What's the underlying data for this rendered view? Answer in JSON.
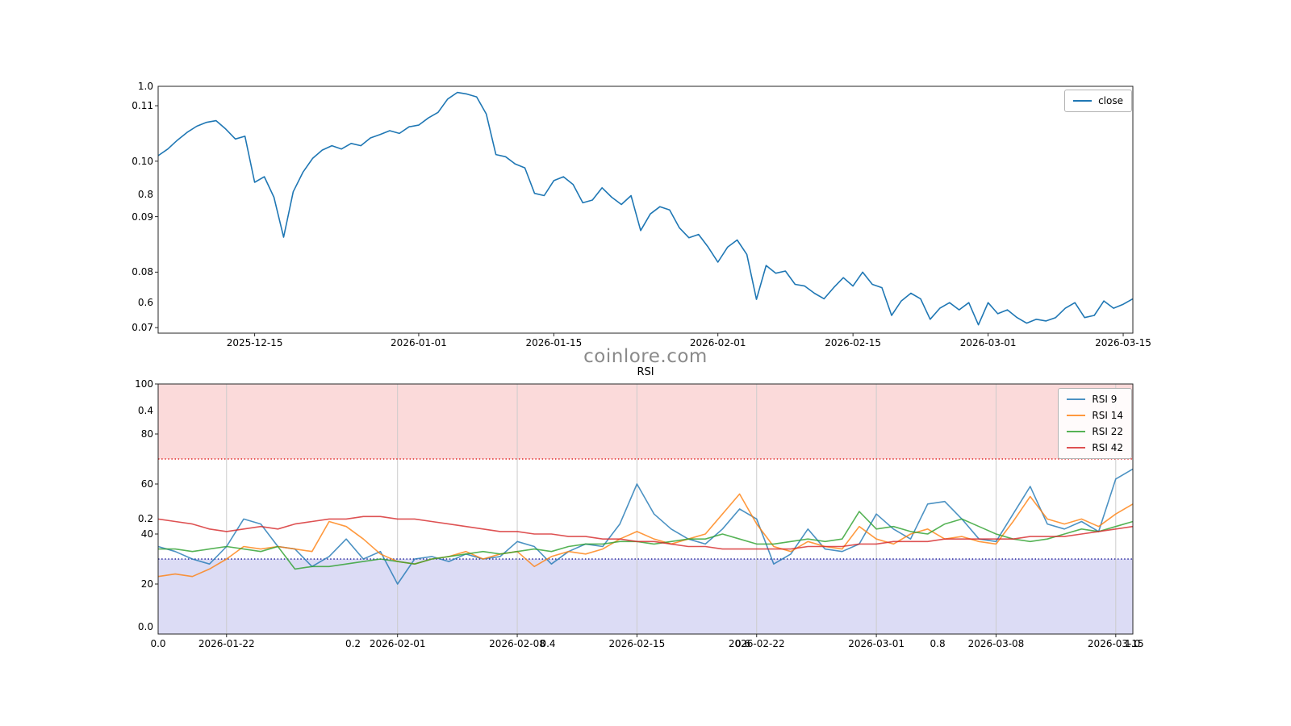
{
  "watermark": "coinlore.com",
  "chart_data": [
    {
      "type": "line",
      "title": "",
      "x_start_date": "2025-12-05",
      "x_tick_labels": [
        "2025-12-15",
        "2026-01-01",
        "2026-01-15",
        "2026-02-01",
        "2026-02-15",
        "2026-03-01",
        "2026-03-15"
      ],
      "x_tick_days": [
        10,
        27,
        41,
        58,
        72,
        86,
        100
      ],
      "y_tick_labels": [
        "0.11",
        "0.10",
        "0.09",
        "0.08",
        "0.07"
      ],
      "y_tick_values": [
        0.11,
        0.1,
        0.09,
        0.08,
        0.07
      ],
      "ylim": [
        0.069,
        0.1135
      ],
      "grid": false,
      "legend_position": "upper right",
      "series": [
        {
          "name": "close",
          "color": "#1f77b4",
          "values": [
            0.101,
            0.1022,
            0.1038,
            0.1052,
            0.1063,
            0.107,
            0.1073,
            0.1058,
            0.104,
            0.1045,
            0.0962,
            0.0972,
            0.0935,
            0.0863,
            0.0945,
            0.098,
            0.1005,
            0.102,
            0.1028,
            0.1022,
            0.1032,
            0.1028,
            0.1042,
            0.1048,
            0.1055,
            0.105,
            0.1062,
            0.1065,
            0.1078,
            0.1088,
            0.1112,
            0.1124,
            0.1121,
            0.1116,
            0.1085,
            0.1012,
            0.1008,
            0.0995,
            0.0988,
            0.0942,
            0.0938,
            0.0965,
            0.0972,
            0.0958,
            0.0925,
            0.093,
            0.0952,
            0.0935,
            0.0922,
            0.0938,
            0.0875,
            0.0905,
            0.0918,
            0.0912,
            0.088,
            0.0862,
            0.0868,
            0.0845,
            0.0818,
            0.0845,
            0.0858,
            0.0832,
            0.0751,
            0.0812,
            0.0798,
            0.0802,
            0.0778,
            0.0775,
            0.0762,
            0.0752,
            0.0772,
            0.079,
            0.0775,
            0.08,
            0.0778,
            0.0772,
            0.0722,
            0.0748,
            0.0762,
            0.0752,
            0.0715,
            0.0735,
            0.0745,
            0.0732,
            0.0745,
            0.0705,
            0.0745,
            0.0725,
            0.0732,
            0.0718,
            0.0708,
            0.0715,
            0.0712,
            0.0718,
            0.0735,
            0.0745,
            0.0718,
            0.0722,
            0.0748,
            0.0735,
            0.0742,
            0.0752
          ]
        }
      ]
    },
    {
      "type": "line",
      "title": "RSI",
      "x_start_date": "2026-01-18",
      "x_tick_labels": [
        "2026-01-22",
        "2026-02-01",
        "2026-02-08",
        "2026-02-15",
        "2026-02-22",
        "2026-03-01",
        "2026-03-08",
        "2026-03-15"
      ],
      "x_tick_days": [
        4,
        14,
        21,
        28,
        35,
        42,
        49,
        56
      ],
      "y_tick_labels": [
        "100",
        "80",
        "60",
        "40",
        "20"
      ],
      "y_tick_values": [
        100,
        80,
        60,
        40,
        20
      ],
      "ylim": [
        0,
        100
      ],
      "grid": true,
      "overbought_level": 70,
      "oversold_level": 30,
      "band_fill_overbought": "#fbdada",
      "band_fill_oversold": "#dcdcf5",
      "threshold_color_overbought": "#dd0000",
      "threshold_color_oversold": "#00008b",
      "legend_position": "upper right",
      "series": [
        {
          "name": "RSI 9",
          "color": "#1f77b4",
          "values": [
            35,
            33,
            30,
            28,
            35,
            46,
            44,
            35,
            34,
            27,
            31,
            38,
            30,
            33,
            20,
            30,
            31,
            29,
            32,
            30,
            31,
            37,
            35,
            28,
            33,
            36,
            35,
            44,
            60,
            48,
            42,
            38,
            36,
            42,
            50,
            46,
            28,
            32,
            42,
            34,
            33,
            36,
            48,
            42,
            38,
            52,
            53,
            46,
            38,
            37,
            48,
            59,
            44,
            42,
            45,
            41,
            62,
            66
          ]
        },
        {
          "name": "RSI 14",
          "color": "#ff7f0e",
          "values": [
            23,
            24,
            23,
            26,
            30,
            35,
            34,
            35,
            34,
            33,
            45,
            43,
            38,
            32,
            29,
            28,
            30,
            31,
            33,
            30,
            32,
            33,
            27,
            31,
            33,
            32,
            34,
            38,
            41,
            38,
            36,
            38,
            40,
            48,
            56,
            44,
            35,
            33,
            37,
            35,
            34,
            43,
            38,
            36,
            40,
            42,
            38,
            39,
            37,
            36,
            45,
            55,
            46,
            44,
            46,
            43,
            48,
            52
          ]
        },
        {
          "name": "RSI 22",
          "color": "#2ca02c",
          "values": [
            34,
            34,
            33,
            34,
            35,
            34,
            33,
            35,
            26,
            27,
            27,
            28,
            29,
            30,
            29,
            28,
            30,
            31,
            32,
            33,
            32,
            33,
            34,
            33,
            35,
            36,
            36,
            37,
            37,
            36,
            37,
            38,
            38,
            40,
            38,
            36,
            36,
            37,
            38,
            37,
            38,
            49,
            42,
            43,
            41,
            40,
            44,
            46,
            43,
            40,
            38,
            37,
            38,
            40,
            42,
            41,
            43,
            45
          ]
        },
        {
          "name": "RSI 42",
          "color": "#d62728",
          "values": [
            46,
            45,
            44,
            42,
            41,
            42,
            43,
            42,
            44,
            45,
            46,
            46,
            47,
            47,
            46,
            46,
            45,
            44,
            43,
            42,
            41,
            41,
            40,
            40,
            39,
            39,
            38,
            38,
            37,
            37,
            36,
            35,
            35,
            34,
            34,
            34,
            34,
            34,
            35,
            35,
            35,
            36,
            36,
            37,
            37,
            37,
            38,
            38,
            38,
            38,
            38,
            39,
            39,
            39,
            40,
            41,
            42,
            43
          ]
        }
      ]
    }
  ],
  "overlay_axis": {
    "y_ticks": [
      {
        "label": "1.0",
        "value": 1.0
      },
      {
        "label": "0.8",
        "value": 0.8
      },
      {
        "label": "0.6",
        "value": 0.6
      },
      {
        "label": "0.4",
        "value": 0.4
      },
      {
        "label": "0.2",
        "value": 0.2
      },
      {
        "label": "0.0",
        "value": 0.0
      }
    ],
    "x_ticks": [
      {
        "label": "0.0",
        "value": 0.0
      },
      {
        "label": "0.2",
        "value": 0.2
      },
      {
        "label": "0.4",
        "value": 0.4
      },
      {
        "label": "0.6",
        "value": 0.6
      },
      {
        "label": "0.8",
        "value": 0.8
      },
      {
        "label": "1.0",
        "value": 1.0
      }
    ]
  }
}
